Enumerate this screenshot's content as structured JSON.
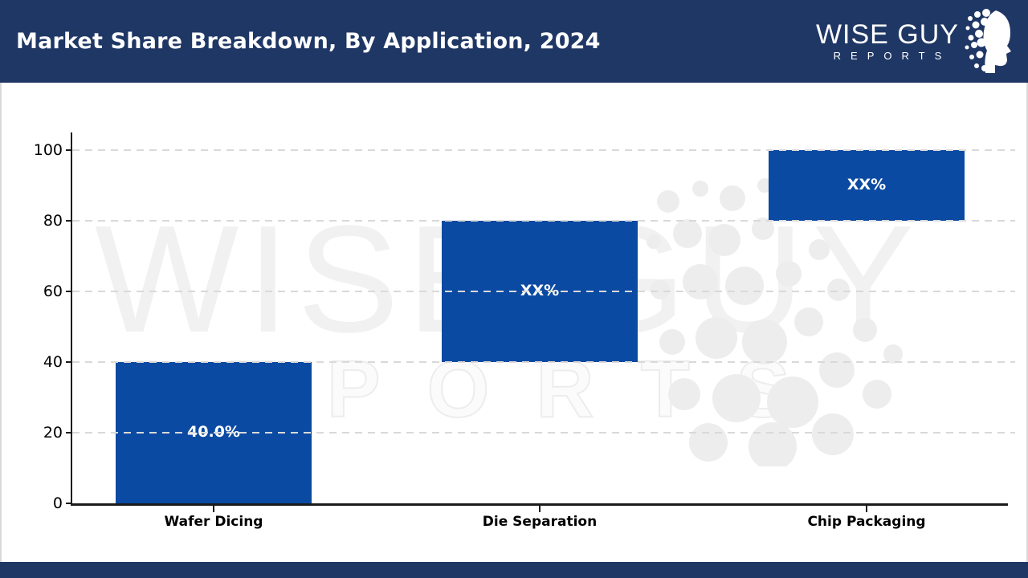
{
  "header": {
    "title": "Market Share Breakdown, By Application, 2024",
    "logo": {
      "line1": "WISE GUY",
      "line2": "REPORTS"
    }
  },
  "watermark": {
    "line1": "WISE GUY",
    "line2": "REPORTS"
  },
  "icons": {
    "logo_face": "face-profile-dots-icon",
    "watermark_dots": "watermark-dots-icon"
  },
  "brand_colors": {
    "navy": "#1f3765",
    "bar_blue": "#0b4aa2",
    "grid_gray": "#d9d9d9"
  },
  "chart_data": {
    "type": "bar",
    "subtype": "floating-segment-waterfall",
    "title": "Market Share Breakdown, By Application, 2024",
    "categories": [
      "Wafer Dicing",
      "Die Separation",
      "Chip Packaging"
    ],
    "segments": [
      {
        "category": "Wafer Dicing",
        "from": 0,
        "to": 40,
        "label": "40.0%"
      },
      {
        "category": "Die Separation",
        "from": 40,
        "to": 80,
        "label": "XX%"
      },
      {
        "category": "Chip Packaging",
        "from": 80,
        "to": 100,
        "label": "XX%"
      }
    ],
    "yticks": [
      0,
      20,
      40,
      60,
      80,
      100
    ],
    "ylim": [
      0,
      100
    ],
    "xlabel": "",
    "ylabel": "",
    "grid": {
      "horizontal": true,
      "style": "dashed",
      "drawn_over_bars": true,
      "color": "#d9d9d9"
    },
    "legend": null,
    "colors": {
      "bar": "#0b4aa2",
      "bar_label": "#ffffff",
      "axis": "#1a1a1a",
      "tick_label": "#000000"
    }
  }
}
